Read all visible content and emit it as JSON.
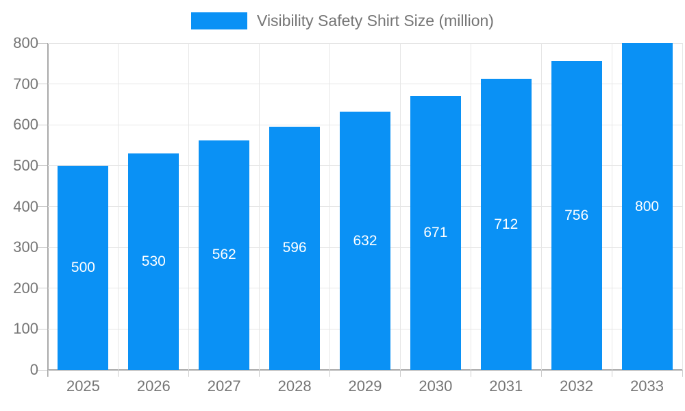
{
  "chart_data": {
    "type": "bar",
    "title": "Visibility Safety Shirt Size (million)",
    "categories": [
      "2025",
      "2026",
      "2027",
      "2028",
      "2029",
      "2030",
      "2031",
      "2032",
      "2033"
    ],
    "values": [
      500,
      530,
      562,
      596,
      632,
      671,
      712,
      756,
      800
    ],
    "xlabel": "",
    "ylabel": "",
    "ylim": [
      0,
      800
    ],
    "ytick_step": 100,
    "ytick_labels": [
      "0",
      "100",
      "200",
      "300",
      "400",
      "500",
      "600",
      "700",
      "800"
    ],
    "grid": true,
    "legend_position": "top-center",
    "value_labels": "white text centered inside bars"
  },
  "colors": {
    "bar": "#0a91f5",
    "value_label": "#ffffff",
    "axis_text": "#757575",
    "gridline": "#e6e6e6",
    "axis_line": "#a9a9a9",
    "tick": "#cccccc",
    "background": "#ffffff"
  }
}
